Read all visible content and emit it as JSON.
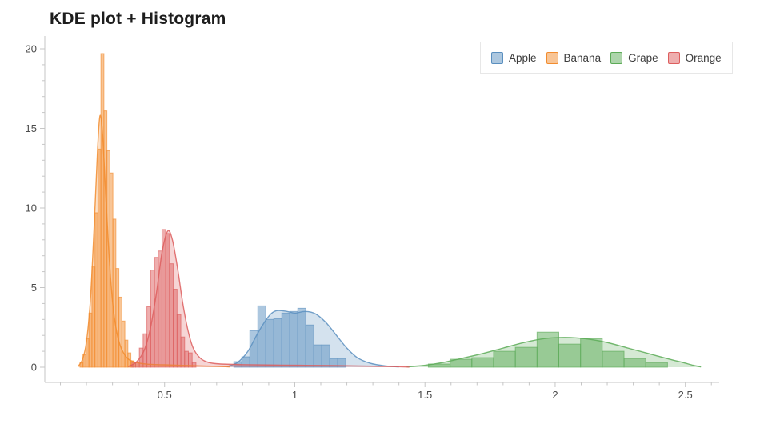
{
  "chart_data": {
    "type": "histogram+kde",
    "title": "KDE plot + Histogram",
    "legend_position": "top-right-inside",
    "grid": false,
    "x_ticks": [
      0.5,
      1,
      1.5,
      2,
      2.5
    ],
    "x_minor_step": 0.1,
    "y_ticks": [
      0,
      5,
      10,
      15,
      20
    ],
    "y_minor_step": 1,
    "x_range": [
      0.04,
      2.63
    ],
    "y_range": [
      0,
      20
    ],
    "axis_color": "#c6c6c6",
    "tick_label_color": "#4c4c4c",
    "series": [
      {
        "name": "Apple",
        "color": "#5a8fbf",
        "hist": {
          "start": 0.766,
          "bin_width": 0.0307,
          "values": [
            0.35,
            0.65,
            2.3,
            3.85,
            3.0,
            3.05,
            3.4,
            3.5,
            3.7,
            2.65,
            1.4,
            1.4,
            0.55,
            0.55
          ]
        },
        "kde": {
          "x": [
            0.74,
            0.78,
            0.82,
            0.86,
            0.9,
            0.93,
            0.97,
            1.0,
            1.04,
            1.08,
            1.12,
            1.16,
            1.2,
            1.24,
            1.29,
            1.35,
            1.4
          ],
          "y": [
            0.04,
            0.3,
            1.0,
            2.2,
            3.2,
            3.55,
            3.5,
            3.4,
            3.5,
            3.35,
            2.8,
            2.0,
            1.2,
            0.6,
            0.25,
            0.08,
            0.02
          ]
        }
      },
      {
        "name": "Banana",
        "color": "#f28c2e",
        "hist": {
          "start": 0.175,
          "bin_width": 0.0115,
          "values": [
            0.3,
            0.8,
            1.8,
            3.4,
            6.3,
            9.7,
            13.7,
            19.7,
            16.1,
            13.6,
            12.2,
            9.3,
            6.2,
            4.4,
            2.9,
            1.7,
            0.9,
            0.4
          ]
        },
        "kde": {
          "x": [
            0.168,
            0.185,
            0.2,
            0.215,
            0.23,
            0.243,
            0.252,
            0.262,
            0.275,
            0.29,
            0.305,
            0.325,
            0.35,
            0.38,
            0.43,
            0.5,
            0.6,
            0.7,
            0.75
          ],
          "y": [
            0.05,
            0.5,
            1.6,
            4.2,
            9.0,
            13.8,
            15.8,
            14.6,
            10.5,
            6.2,
            3.4,
            1.6,
            0.7,
            0.35,
            0.2,
            0.15,
            0.1,
            0.06,
            0.02
          ]
        }
      },
      {
        "name": "Grape",
        "color": "#5cab57",
        "hist": {
          "start": 1.513,
          "bin_width": 0.0835,
          "values": [
            0.2,
            0.5,
            0.6,
            1.0,
            1.25,
            2.2,
            1.45,
            1.8,
            1.0,
            0.55,
            0.3
          ]
        },
        "kde": {
          "x": [
            1.43,
            1.5,
            1.57,
            1.64,
            1.72,
            1.8,
            1.88,
            1.96,
            2.04,
            2.12,
            2.2,
            2.28,
            2.36,
            2.44,
            2.49,
            2.53,
            2.56
          ],
          "y": [
            0.02,
            0.12,
            0.3,
            0.55,
            0.85,
            1.2,
            1.55,
            1.8,
            1.87,
            1.78,
            1.55,
            1.2,
            0.85,
            0.5,
            0.3,
            0.12,
            0.02
          ]
        }
      },
      {
        "name": "Orange",
        "color": "#dd5e5e",
        "hist": {
          "start": 0.374,
          "bin_width": 0.0145,
          "values": [
            0.3,
            0.3,
            1.2,
            2.1,
            3.8,
            6.1,
            6.9,
            7.3,
            8.65,
            8.4,
            6.5,
            4.9,
            3.3,
            1.9,
            1.0,
            0.9,
            0.3
          ]
        },
        "kde": {
          "x": [
            0.36,
            0.39,
            0.42,
            0.445,
            0.47,
            0.49,
            0.512,
            0.53,
            0.55,
            0.57,
            0.59,
            0.61,
            0.635,
            0.66,
            0.7,
            0.8,
            0.95,
            1.1,
            1.25,
            1.38,
            1.44
          ],
          "y": [
            0.05,
            0.3,
            1.0,
            2.4,
            4.8,
            7.2,
            8.55,
            8.0,
            6.2,
            4.0,
            2.3,
            1.2,
            0.6,
            0.35,
            0.22,
            0.16,
            0.13,
            0.11,
            0.08,
            0.04,
            0.01
          ]
        }
      }
    ]
  }
}
